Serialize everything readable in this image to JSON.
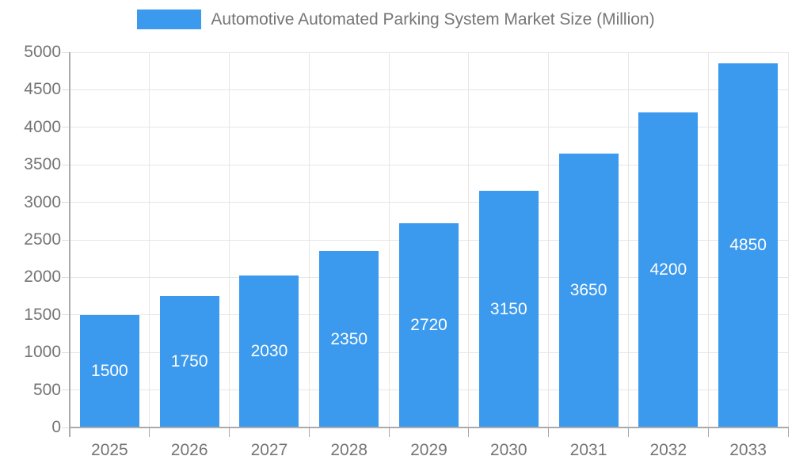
{
  "legend": {
    "label": "Automotive Automated Parking System Market Size (Million)"
  },
  "colors": {
    "bar": "#3B99EE",
    "value_label": "#ffffff",
    "axis": "#ababab",
    "gridline": "#e6e6e6",
    "tick": "#dddddd",
    "text": "#757575",
    "background": "#ffffff"
  },
  "chart_data": {
    "type": "bar",
    "title": "Automotive Automated Parking System Market Size (Million)",
    "categories": [
      "2025",
      "2026",
      "2027",
      "2028",
      "2029",
      "2030",
      "2031",
      "2032",
      "2033"
    ],
    "values": [
      1500,
      1750,
      2030,
      2350,
      2720,
      3150,
      3650,
      4200,
      4850
    ],
    "value_labels_inside_bars": true,
    "xlabel": "",
    "ylabel": "",
    "ylim": [
      0,
      5000
    ],
    "ytick_step": 500,
    "yticks": [
      0,
      500,
      1000,
      1500,
      2000,
      2500,
      3000,
      3500,
      4000,
      4500,
      5000
    ],
    "grid": true,
    "legend_position": "top-center"
  }
}
